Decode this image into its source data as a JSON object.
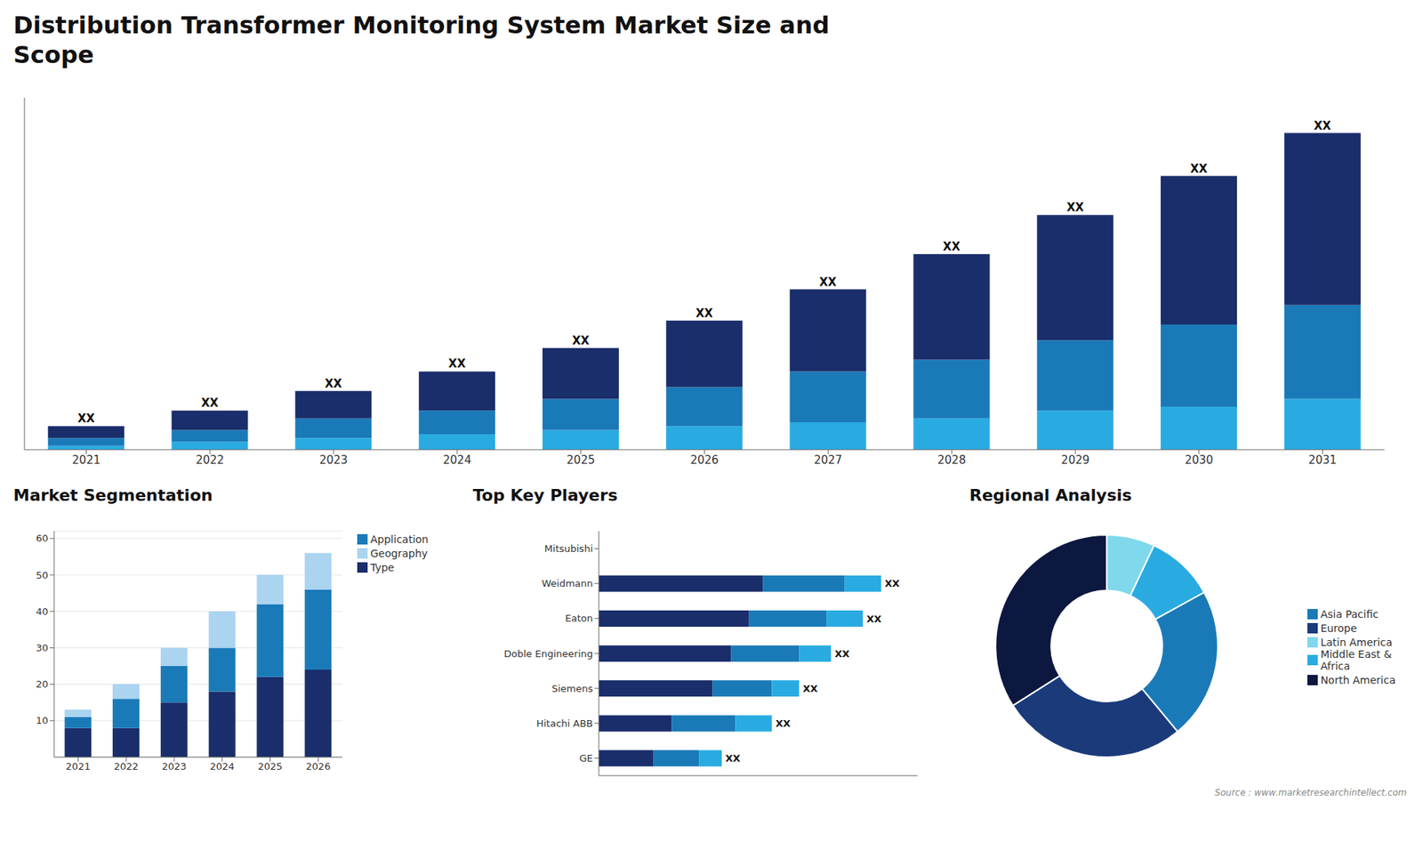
{
  "chart_data": [
    {
      "type": "bar",
      "title": "Distribution Transformer Monitoring System Market Size and\nScope",
      "categories": [
        "2021",
        "2022",
        "2023",
        "2024",
        "2025",
        "2026",
        "2027",
        "2028",
        "2029",
        "2030",
        "2031"
      ],
      "series": [
        {
          "color": "#29abe2",
          "values": [
            1,
            2,
            3,
            4,
            5,
            6,
            7,
            8,
            10,
            11,
            13
          ]
        },
        {
          "color": "#1a7ab8",
          "values": [
            2,
            3,
            5,
            6,
            8,
            10,
            13,
            15,
            18,
            21,
            24
          ]
        },
        {
          "color": "#1a2e6b",
          "values": [
            3,
            5,
            7,
            10,
            13,
            17,
            21,
            27,
            32,
            38,
            44
          ]
        }
      ],
      "stacked": true,
      "ylim": [
        0,
        90
      ],
      "tick_labels": "x",
      "grid": false,
      "annotations": [
        "XX",
        "XX",
        "XX",
        "XX",
        "XX",
        "XX",
        "XX",
        "XX",
        "XX",
        "XX",
        "XX"
      ]
    },
    {
      "type": "bar",
      "title": "Market Segmentation",
      "categories": [
        "2021",
        "2022",
        "2023",
        "2024",
        "2025",
        "2026"
      ],
      "series": [
        {
          "name": "Type",
          "color": "#1a2e6b",
          "values": [
            8,
            8,
            15,
            18,
            22,
            24
          ]
        },
        {
          "name": "Application",
          "color": "#1a7ab8",
          "values": [
            3,
            8,
            10,
            12,
            20,
            22
          ]
        },
        {
          "name": "Geography",
          "color": "#aad4f0",
          "values": [
            2,
            4,
            5,
            10,
            8,
            10
          ]
        }
      ],
      "stacked": true,
      "ylim": [
        0,
        62
      ],
      "yticks": [
        10,
        20,
        30,
        40,
        50,
        60
      ],
      "grid": true,
      "legend": "right"
    },
    {
      "type": "bar",
      "orientation": "horizontal",
      "title": "Top Key Players",
      "categories": [
        "Mitsubishi",
        "Weidmann",
        "Eaton",
        "Doble Engineering",
        "Siemens",
        "Hitachi ABB",
        "GE"
      ],
      "series": [
        {
          "color": "#1a2e6b",
          "values": [
            0,
            36,
            33,
            29,
            25,
            16,
            12
          ]
        },
        {
          "color": "#1a7ab8",
          "values": [
            0,
            18,
            17,
            15,
            13,
            14,
            10
          ]
        },
        {
          "color": "#29abe2",
          "values": [
            0,
            8,
            8,
            7,
            6,
            8,
            5
          ]
        }
      ],
      "stacked": true,
      "xlim": [
        0,
        70
      ],
      "tick_labels": "y",
      "grid": false,
      "annotations": [
        null,
        "XX",
        "XX",
        "XX",
        "XX",
        "XX",
        "XX"
      ]
    },
    {
      "type": "donut",
      "title": "Regional Analysis",
      "categories": [
        "Latin America",
        "Middle East &\nAfrica",
        "Asia Pacific",
        "Europe",
        "North America"
      ],
      "values": [
        7,
        10,
        22,
        27,
        34
      ],
      "colors": [
        "#7fd8ec",
        "#29abe2",
        "#1a7ab8",
        "#1a3a7a",
        "#0d1840"
      ],
      "legend": "right",
      "annotations": [
        "Source : www.marketresearchintellect.com"
      ]
    }
  ]
}
